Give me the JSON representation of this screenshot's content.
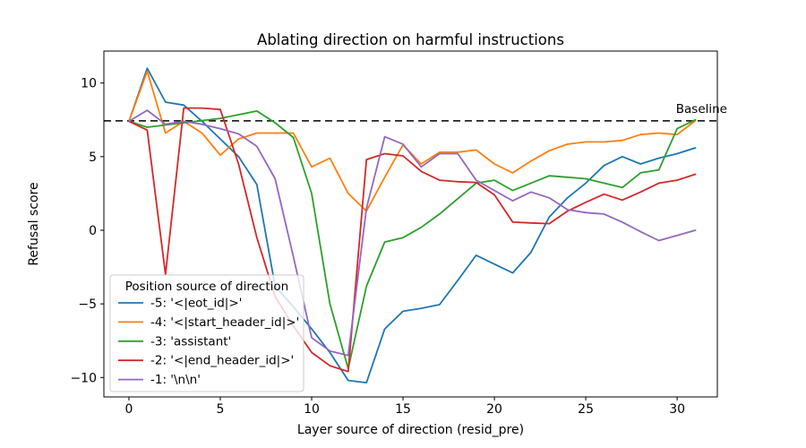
{
  "chart_data": {
    "type": "line",
    "title": "Ablating direction on harmful instructions",
    "xlabel": "Layer source of direction (resid_pre)",
    "ylabel": "Refusal score",
    "xlim": [
      -1.37,
      32.2
    ],
    "ylim": [
      -11.32,
      12.17
    ],
    "grid": false,
    "x_ticks": [
      0,
      5,
      10,
      15,
      20,
      25,
      30
    ],
    "x_tick_labels": [
      "0",
      "5",
      "10",
      "15",
      "20",
      "25",
      "30"
    ],
    "y_ticks": [
      -10,
      -5,
      0,
      5,
      10
    ],
    "y_tick_labels": [
      "−10",
      "−5",
      "0",
      "5",
      "10"
    ],
    "baseline": {
      "value": 7.43,
      "label": "Baseline",
      "style": "dashed",
      "color": "#000000"
    },
    "legend": {
      "title": "Position source of direction",
      "position": "lower left"
    },
    "x": [
      0,
      1,
      2,
      3,
      4,
      5,
      6,
      7,
      8,
      9,
      10,
      11,
      12,
      13,
      14,
      15,
      16,
      17,
      18,
      19,
      20,
      21,
      22,
      23,
      24,
      25,
      26,
      27,
      28,
      29,
      30,
      31
    ],
    "series": [
      {
        "key": "eot-id",
        "name": "-5: '<|eot_id|>'",
        "color": "#1f77b4",
        "values": [
          7.4,
          11.0,
          8.7,
          8.5,
          7.4,
          6.2,
          5.0,
          3.1,
          -3.8,
          -5.2,
          -6.7,
          -8.3,
          -10.2,
          -10.35,
          -6.7,
          -5.5,
          -5.3,
          -5.05,
          -3.4,
          -1.7,
          -2.3,
          -2.9,
          -1.5,
          0.9,
          2.2,
          3.2,
          4.4,
          5.0,
          4.5,
          4.9,
          5.2,
          5.6
        ]
      },
      {
        "key": "start-header-id",
        "name": "-4: '<|start_header_id|>'",
        "color": "#ff7f0e",
        "values": [
          7.4,
          10.8,
          6.6,
          7.4,
          6.6,
          5.1,
          6.2,
          6.6,
          6.6,
          6.6,
          4.3,
          4.9,
          2.5,
          1.3,
          3.6,
          5.8,
          4.5,
          5.3,
          5.3,
          5.45,
          4.5,
          3.9,
          4.7,
          5.4,
          5.85,
          6.0,
          6.0,
          6.1,
          6.5,
          6.6,
          6.5,
          7.45
        ]
      },
      {
        "key": "assistant",
        "name": "-3: 'assistant'",
        "color": "#2ca02c",
        "values": [
          7.4,
          7.0,
          7.15,
          7.3,
          7.45,
          7.6,
          7.85,
          8.1,
          7.3,
          6.3,
          2.5,
          -5.0,
          -9.4,
          -3.8,
          -0.8,
          -0.5,
          0.2,
          1.1,
          2.15,
          3.2,
          3.4,
          2.7,
          3.2,
          3.7,
          3.6,
          3.5,
          3.2,
          2.9,
          3.9,
          4.1,
          6.9,
          7.5
        ]
      },
      {
        "key": "end-header-id",
        "name": "-2: '<|end_header_id|>'",
        "color": "#d62728",
        "values": [
          7.4,
          6.8,
          -3.0,
          8.3,
          8.3,
          8.2,
          4.5,
          -0.5,
          -4.5,
          -6.5,
          -8.3,
          -9.2,
          -9.6,
          4.8,
          5.2,
          5.05,
          4.0,
          3.4,
          3.3,
          3.25,
          2.4,
          0.55,
          0.5,
          0.45,
          1.3,
          1.9,
          2.45,
          2.05,
          2.6,
          3.2,
          3.4,
          3.8
        ]
      },
      {
        "key": "newlines",
        "name": "-1: '\\n\\n'",
        "color": "#9467bd",
        "values": [
          7.4,
          8.15,
          7.2,
          7.4,
          7.2,
          6.9,
          6.55,
          5.7,
          3.5,
          -1.8,
          -7.3,
          -8.2,
          -8.5,
          1.5,
          6.35,
          5.85,
          4.3,
          5.2,
          5.2,
          3.4,
          2.7,
          2.0,
          2.6,
          2.2,
          1.4,
          1.2,
          1.1,
          0.55,
          -0.1,
          -0.7,
          -0.35,
          0.0
        ]
      }
    ]
  }
}
